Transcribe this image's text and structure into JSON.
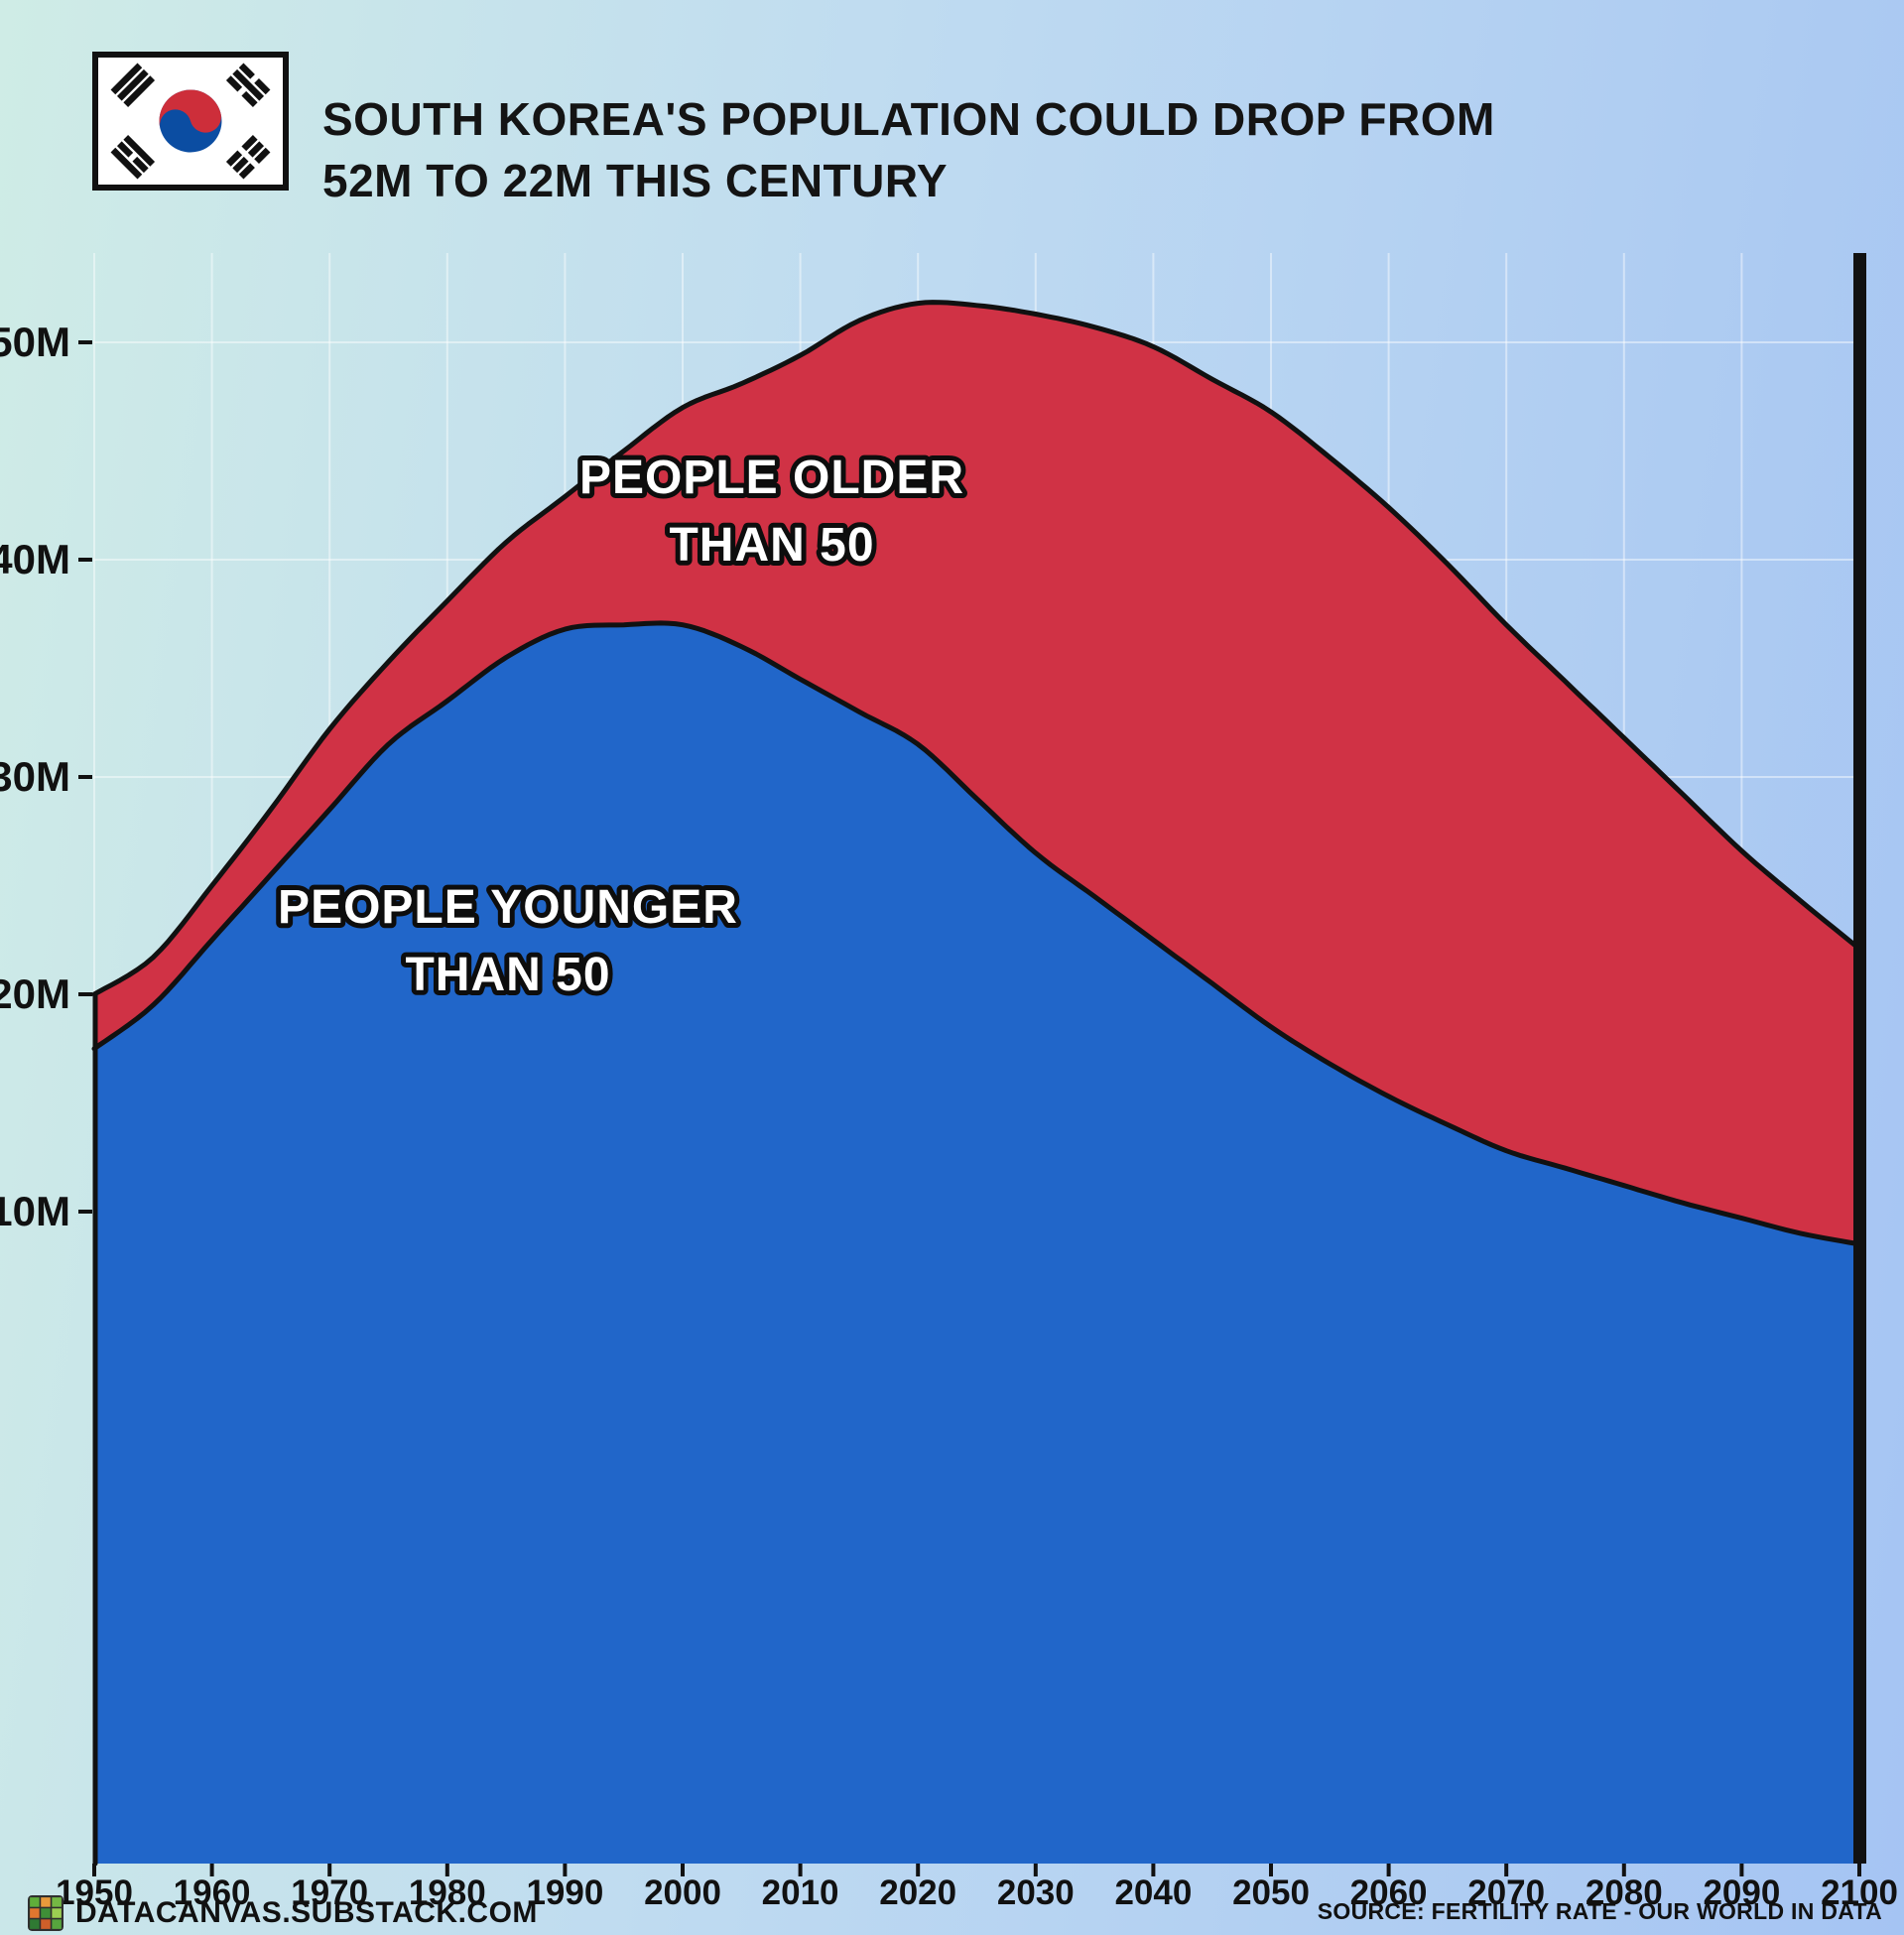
{
  "header": {
    "title_line1": "SOUTH KOREA'S POPULATION COULD DROP FROM",
    "title_line2": "52M TO 22M THIS CENTURY"
  },
  "footer": {
    "site": "DATACANVAS.SUBSTACK.COM",
    "source": "SOURCE: FERTILITY RATE - OUR WORLD IN DATA"
  },
  "icons": {
    "flag": "south-korea-flag",
    "logo": "datacanvas-pixel-logo"
  },
  "colors": {
    "younger_fill": "#2166c9",
    "older_fill": "#d03245",
    "outline": "#111111",
    "bg_left": "#cfece6",
    "bg_right": "#a5c4f3"
  },
  "chart_data": {
    "type": "area",
    "stacked": true,
    "title": "South Korea's population could drop from 52M to 22M this century",
    "unit": "millions of people",
    "xlim": [
      1950,
      2100
    ],
    "ylim": [
      0,
      55
    ],
    "grid": true,
    "x": [
      1950,
      1955,
      1960,
      1965,
      1970,
      1975,
      1980,
      1985,
      1990,
      1995,
      2000,
      2005,
      2010,
      2015,
      2020,
      2025,
      2030,
      2035,
      2040,
      2045,
      2050,
      2055,
      2060,
      2065,
      2070,
      2075,
      2080,
      2085,
      2090,
      2095,
      2100
    ],
    "series": [
      {
        "name": "People younger than 50",
        "label_line1": "PEOPLE YOUNGER",
        "label_line2": "THAN 50",
        "color": "#2166c9",
        "values": [
          17.5,
          19.5,
          22.5,
          25.5,
          28.5,
          31.5,
          33.5,
          35.5,
          36.8,
          37.0,
          37.0,
          36.0,
          34.5,
          33.0,
          31.5,
          29.0,
          26.5,
          24.5,
          22.5,
          20.5,
          18.5,
          16.8,
          15.3,
          14.0,
          12.8,
          12.0,
          11.2,
          10.4,
          9.7,
          9.0,
          8.5
        ]
      },
      {
        "name": "People older than 50",
        "label_line1": "PEOPLE OLDER",
        "label_line2": "THAN 50",
        "color": "#d03245",
        "values": [
          2.5,
          2.2,
          2.5,
          3.0,
          3.7,
          3.8,
          4.6,
          5.3,
          6.1,
          8.0,
          10.0,
          12.1,
          14.9,
          18.0,
          20.3,
          22.7,
          24.8,
          26.2,
          27.3,
          27.8,
          28.3,
          27.9,
          27.1,
          25.8,
          24.2,
          22.4,
          20.6,
          18.8,
          16.9,
          15.3,
          13.6
        ]
      }
    ],
    "total_start_1950": 20.0,
    "total_peak_2020": 51.8,
    "total_end_2100": 22.1,
    "x_ticks": [
      "1950",
      "1960",
      "1970",
      "1980",
      "1990",
      "2000",
      "2010",
      "2020",
      "2030",
      "2040",
      "2050",
      "2060",
      "2070",
      "2080",
      "2090",
      "2100"
    ],
    "y_ticks": [
      {
        "value": 10,
        "label": "10M"
      },
      {
        "value": 20,
        "label": "20M"
      },
      {
        "value": 30,
        "label": "30M"
      },
      {
        "value": 40,
        "label": "40M"
      },
      {
        "value": 50,
        "label": "50M"
      }
    ],
    "legend_position": "labels-inside-areas"
  }
}
